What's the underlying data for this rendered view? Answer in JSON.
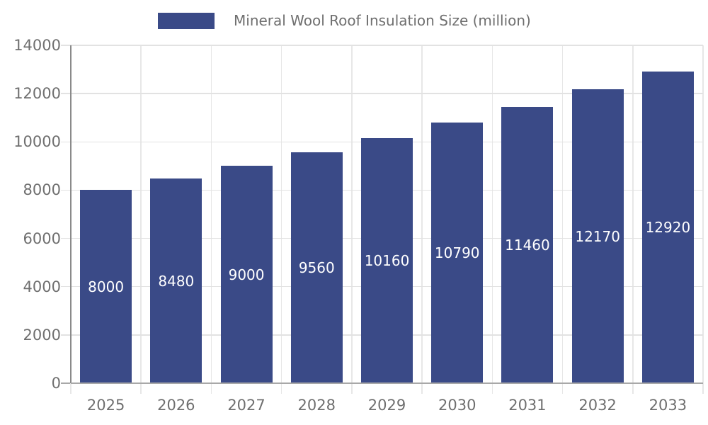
{
  "chart_data": {
    "type": "bar",
    "title": "",
    "legend": "Mineral Wool Roof Insulation Size (million)",
    "legend_position": "top",
    "categories": [
      "2025",
      "2026",
      "2027",
      "2028",
      "2029",
      "2030",
      "2031",
      "2032",
      "2033"
    ],
    "values": [
      8000,
      8480,
      9000,
      9560,
      10160,
      10790,
      11460,
      12170,
      12920
    ],
    "value_labels": [
      "8000",
      "8480",
      "9000",
      "9560",
      "10160",
      "10790",
      "11460",
      "12170",
      "12920"
    ],
    "value_label_position": "inside-middle",
    "xlabel": "",
    "ylabel": "",
    "ylim": [
      0,
      14000
    ],
    "yticks": [
      0,
      2000,
      4000,
      6000,
      8000,
      10000,
      12000,
      14000
    ],
    "grid": true,
    "colors": {
      "bar": "#3a4a87",
      "bar_label": "#ffffff",
      "axis_text": "#6f6f6f",
      "legend_text": "#6f6f6f",
      "hgrid": "#e2e2e2",
      "vgrid": "#e7e7e7",
      "axis_line": "#8a8a8a",
      "baseline": "#a8a8a8",
      "background": "#ffffff"
    }
  }
}
